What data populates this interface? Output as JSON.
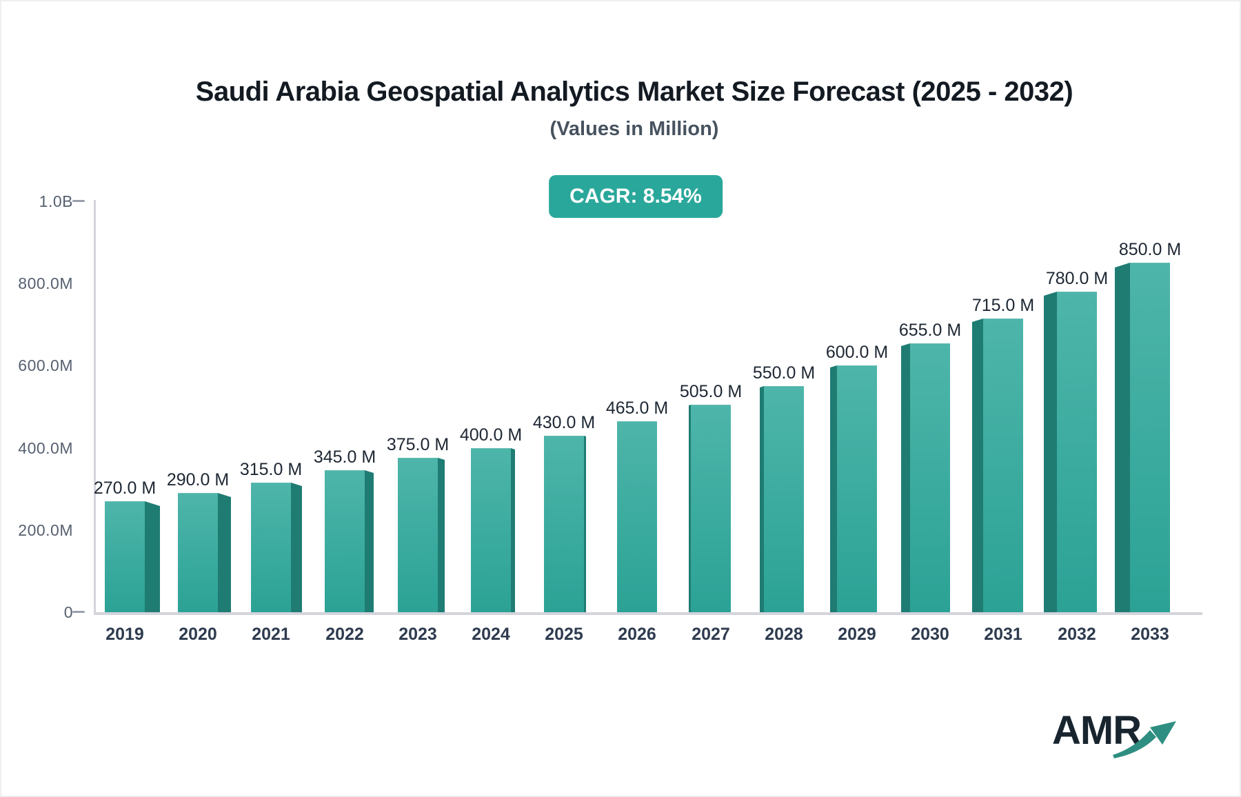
{
  "page": {
    "logo_text": "AMR"
  },
  "colors": {
    "accent_teal": "#2aa79b",
    "bar_front_top": "#4eb5aa",
    "bar_front_bottom": "#2ba295",
    "bar_side": "#1f7c73",
    "axis_line": "#d4d4dc",
    "title_text": "#131a22",
    "subtitle_text": "#47525f",
    "xtick_text": "#2e3b4f",
    "ytick_text": "#566070",
    "value_label_text": "#1d2733",
    "logo_text_color": "#18242e",
    "logo_arrow_color": "#2f8e82"
  },
  "chart_data": {
    "type": "bar",
    "title": "Saudi Arabia Geospatial Analytics Market Size Forecast (2025 - 2032)",
    "subtitle": "(Values in Million)",
    "annotations": [
      {
        "text": "CAGR: 8.54%",
        "position": "top-center"
      }
    ],
    "categories": [
      "2019",
      "2020",
      "2021",
      "2022",
      "2023",
      "2024",
      "2025",
      "2026",
      "2027",
      "2028",
      "2029",
      "2030",
      "2031",
      "2032",
      "2033"
    ],
    "values": [
      270,
      290,
      315,
      345,
      375,
      400,
      430,
      465,
      505,
      550,
      600,
      655,
      715,
      780,
      850
    ],
    "labels": [
      "270.0 M",
      "290.0 M",
      "315.0 M",
      "345.0 M",
      "375.0 M",
      "400.0 M",
      "430.0 M",
      "465.0 M",
      "505.0 M",
      "550.0 M",
      "600.0 M",
      "655.0 M",
      "715.0 M",
      "780.0 M",
      "850.0 M"
    ],
    "unit": "Million",
    "xlabel": "",
    "ylabel": "",
    "ylim": [
      0,
      1000
    ],
    "yticks": [
      {
        "label": "1.0B",
        "value": 1000,
        "dash": true
      },
      {
        "label": "800.0M",
        "value": 800,
        "dash": false
      },
      {
        "label": "600.0M",
        "value": 600,
        "dash": false
      },
      {
        "label": "400.0M",
        "value": 400,
        "dash": false
      },
      {
        "label": "200.0M",
        "value": 200,
        "dash": false
      },
      {
        "label": "0",
        "value": 0,
        "dash": true
      }
    ],
    "grid": false,
    "legend": false,
    "style": "3d-column-center-perspective"
  }
}
